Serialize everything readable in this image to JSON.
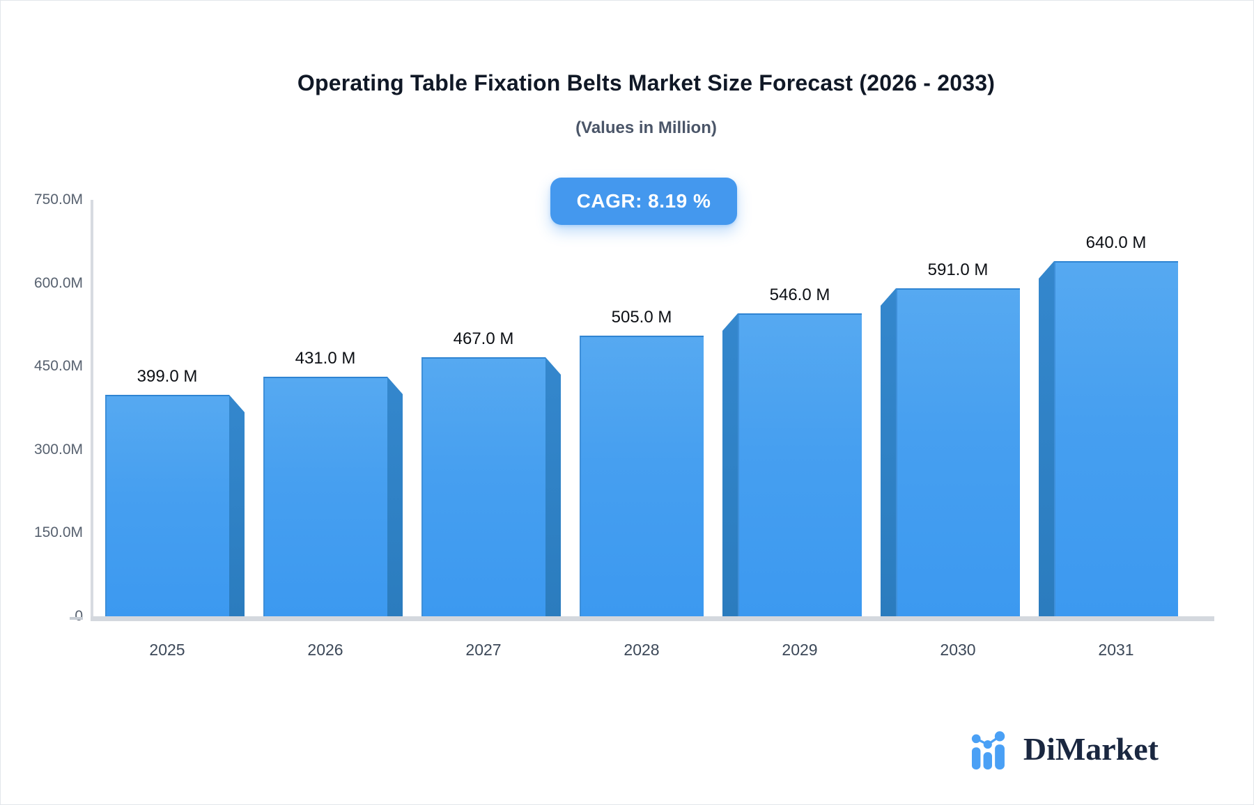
{
  "header": {
    "title": "Operating Table Fixation Belts Market Size Forecast (2026 - 2033)",
    "subtitle": "(Values in Million)",
    "cagr_label": "CAGR: 8.19 %"
  },
  "chart_data": {
    "type": "bar",
    "title": "Operating Table Fixation Belts Market Size Forecast (2026 - 2033)",
    "subtitle": "(Values in Million)",
    "unit": "Million",
    "cagr_percent": 8.19,
    "categories": [
      "2025",
      "2026",
      "2027",
      "2028",
      "2029",
      "2030",
      "2031"
    ],
    "values": [
      399,
      431,
      467,
      505,
      546,
      591,
      640
    ],
    "value_labels": [
      "399.0 M",
      "431.0 M",
      "467.0 M",
      "505.0 M",
      "546.0 M",
      "591.0 M",
      "640.0 M"
    ],
    "side_3d": [
      "right",
      "right",
      "right",
      "none",
      "left",
      "left",
      "left"
    ],
    "y_ticks": [
      {
        "value": 0,
        "label": "0"
      },
      {
        "value": 150,
        "label": "150.0M"
      },
      {
        "value": 300,
        "label": "300.0M"
      },
      {
        "value": 450,
        "label": "450.0M"
      },
      {
        "value": 600,
        "label": "600.0M"
      },
      {
        "value": 750,
        "label": "750.0M"
      }
    ],
    "ylim": [
      0,
      750
    ],
    "grid": false,
    "legend_position": "none",
    "colors": {
      "bar_face_top": "#56a9f1",
      "bar_face_bottom": "#3c99f0",
      "bar_side": "#2b7cbe",
      "badge_background": "#4498ee",
      "axis_line": "#d5d9df",
      "title_text": "#101826",
      "tick_text": "#57616f"
    }
  },
  "brand": {
    "name": "DiMarket",
    "logo_icon": "bar-chart-dots-icon",
    "logo_color": "#4aa0f5",
    "text_color": "#1a2740"
  }
}
